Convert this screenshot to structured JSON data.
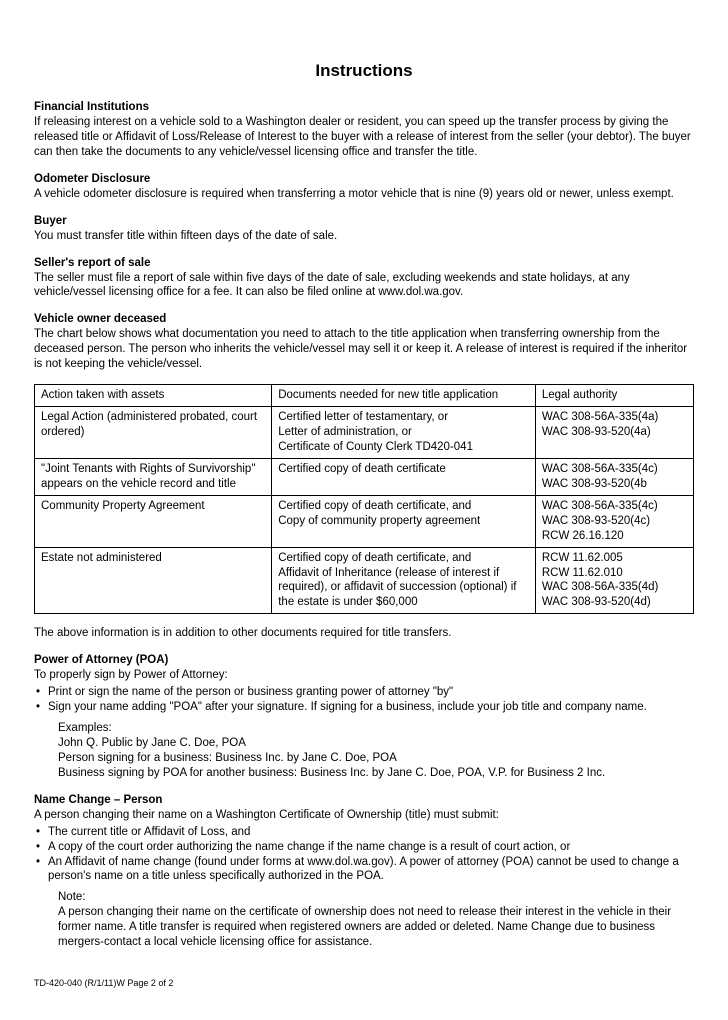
{
  "title": "Instructions",
  "sections": {
    "financial": {
      "heading": "Financial Institutions",
      "body": "If releasing interest on a vehicle sold to a Washington dealer or resident, you can speed up the transfer process by giving the released title or Affidavit of Loss/Release of Interest to the buyer with a release of interest from the seller (your debtor). The buyer can then take the documents to any vehicle/vessel licensing office and transfer the title."
    },
    "odometer": {
      "heading": "Odometer Disclosure",
      "body": "A vehicle odometer disclosure is required when transferring a motor vehicle that is nine (9) years old or newer, unless exempt."
    },
    "buyer": {
      "heading": "Buyer",
      "body": "You must transfer title within fifteen days of the date of sale."
    },
    "seller": {
      "heading": "Seller's report of sale",
      "body": "The seller must file a report of sale within five days of the date of sale, excluding weekends and state holidays, at any vehicle/vessel licensing office for a fee.  It can also be filed online at www.dol.wa.gov."
    },
    "deceased": {
      "heading": "Vehicle owner deceased",
      "body": "The chart below shows what documentation you need to attach to the title application when transferring ownership from the deceased person.  The person who inherits the vehicle/vessel may sell it or keep it.  A release of interest is required if the inheritor is not keeping the vehicle/vessel."
    },
    "poa": {
      "heading": "Power of Attorney (POA)",
      "intro": "To properly sign by Power of Attorney:",
      "bullets": [
        "Print or sign the name of the person or business granting power of attorney \"by\"",
        "Sign your name adding \"POA\" after your signature. If signing for a business, include your job title and company name."
      ],
      "examples_label": "Examples:",
      "examples": [
        "John Q. Public by Jane C. Doe, POA",
        "Person signing for a business: Business Inc. by Jane C. Doe, POA",
        "Business signing by POA for another business: Business Inc. by Jane C. Doe, POA, V.P. for Business 2 Inc."
      ]
    },
    "namechange": {
      "heading": "Name Change – Person",
      "intro": "A person changing their name on a Washington Certificate of Ownership (title) must submit:",
      "bullets": [
        "The current title or Affidavit of Loss, and",
        "A copy of the court order authorizing the name change if the name change is a result of court action, or",
        "An Affidavit of name change (found under forms at www.dol.wa.gov). A power of attorney (POA) cannot be used to change a person's name on a title unless specifically authorized in the POA."
      ],
      "note_label": "Note:",
      "note_body": "A person changing their name on the certificate of ownership does not need to release their interest in the vehicle in their former name. A title transfer is required when registered owners are added or deleted. Name Change due to business mergers-contact a local vehicle licensing office for assistance."
    }
  },
  "after_table": "The above information is in addition to other documents required for title transfers.",
  "table": {
    "headers": [
      "Action taken with assets",
      "Documents needed for new title application",
      "Legal authority"
    ],
    "rows": [
      [
        "Legal Action (administered probated, court ordered)",
        "Certified letter of testamentary, or\nLetter of administration, or\nCertificate of County Clerk TD420-041",
        "WAC 308-56A-335(4a)\nWAC 308-93-520(4a)"
      ],
      [
        "\"Joint Tenants with Rights of Survivorship\" appears on the vehicle record and title",
        "Certified copy of death certificate",
        "WAC 308-56A-335(4c)\nWAC 308-93-520(4b"
      ],
      [
        "Community Property Agreement",
        "Certified copy of death certificate, and\nCopy of community property agreement",
        "WAC 308-56A-335(4c)\nWAC 308-93-520(4c)\nRCW 26.16.120"
      ],
      [
        "Estate not administered",
        "Certified copy of death certificate, and\nAffidavit of Inheritance (release of interest if required), or affidavit of succession (optional) if the estate is under $60,000",
        "RCW 11.62.005\nRCW 11.62.010\nWAC 308-56A-335(4d)\nWAC 308-93-520(4d)"
      ]
    ]
  },
  "footer": "TD-420-040 (R/1/11)W Page 2 of 2"
}
